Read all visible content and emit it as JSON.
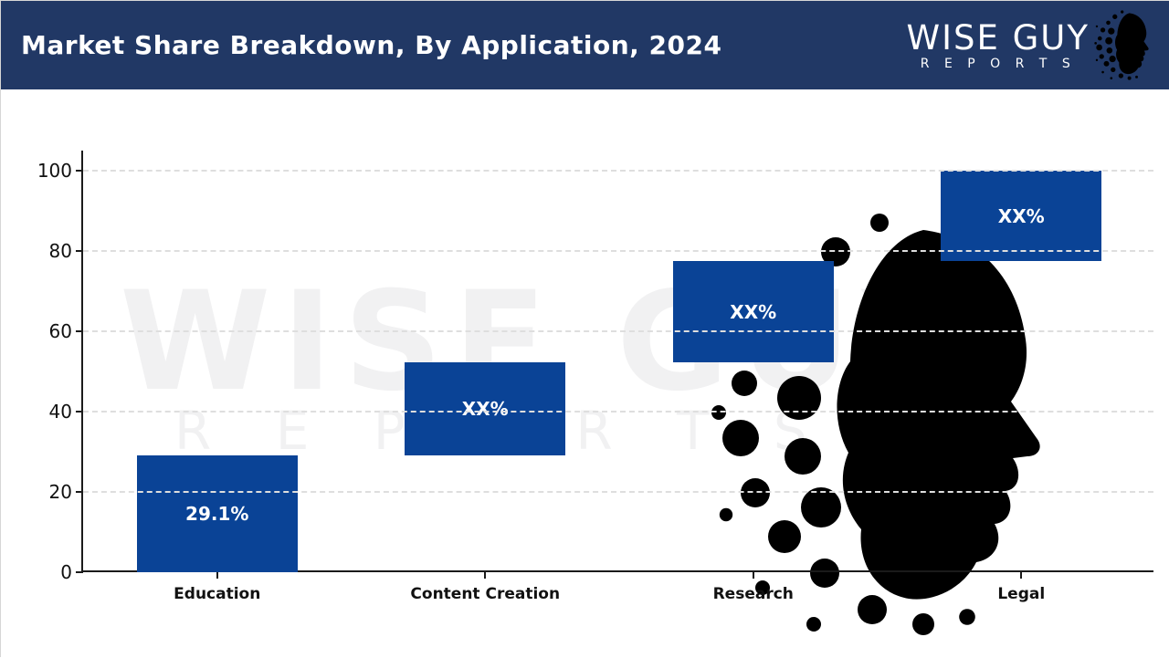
{
  "header": {
    "title": "Market Share Breakdown, By Application, 2024",
    "background_color": "#213865",
    "logo": {
      "wordmark": "WISE GUY",
      "subtitle": "R E P O R T S"
    }
  },
  "watermark": {
    "wordmark": "WISE GUY",
    "subtitle": "R E P O R T S"
  },
  "chart_data": {
    "type": "bar",
    "subtype": "waterfall",
    "title": "Market Share Breakdown, By Application, 2024",
    "categories": [
      "Education",
      "Content Creation",
      "Research",
      "Legal"
    ],
    "segments": [
      {
        "category": "Education",
        "start": 0,
        "end": 29.1,
        "label": "29.1%"
      },
      {
        "category": "Content Creation",
        "start": 29.1,
        "end": 52.2,
        "label": "XX%"
      },
      {
        "category": "Research",
        "start": 52.2,
        "end": 77.4,
        "label": "XX%"
      },
      {
        "category": "Legal",
        "start": 77.4,
        "end": 100,
        "label": "XX%"
      }
    ],
    "ylim": [
      0,
      105
    ],
    "yticks": [
      0,
      20,
      40,
      60,
      80,
      100
    ],
    "grid": "horizontal-dashed",
    "legend": "none",
    "bar_color": "#0a4396",
    "bar_label_color": "#ffffff",
    "axis_color": "#1a1a1a",
    "gridline_color": "#dedede"
  }
}
